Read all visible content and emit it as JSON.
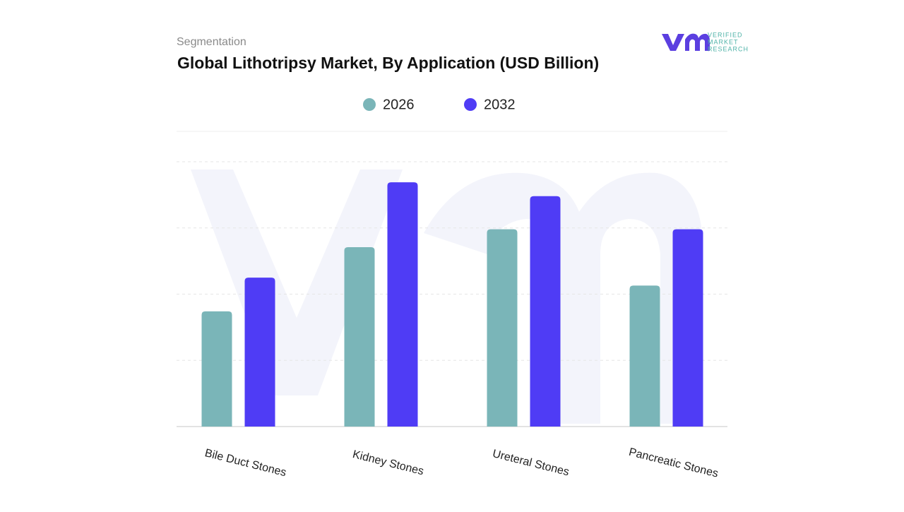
{
  "brand": {
    "lines": [
      "VERIFIED",
      "MARKET",
      "RESEARCH"
    ]
  },
  "chart_data": {
    "type": "bar",
    "subtitle": "Segmentation",
    "title": "Global Lithotripsy Market, By Application (USD Billion)",
    "categories": [
      "Bile Duct Stones",
      "Kidney Stones",
      "Ureteral Stones",
      "Pancreatic Stones"
    ],
    "series": [
      {
        "name": "2026",
        "color": "#7ab5b8",
        "values": [
          1.74,
          2.71,
          2.98,
          2.13
        ]
      },
      {
        "name": "2032",
        "color": "#4f3cf5",
        "values": [
          2.25,
          3.69,
          3.48,
          2.98
        ]
      }
    ],
    "ylim": [
      0,
      4
    ],
    "yticks": [
      1,
      2,
      3,
      4
    ],
    "grid": true,
    "legend": "top"
  }
}
